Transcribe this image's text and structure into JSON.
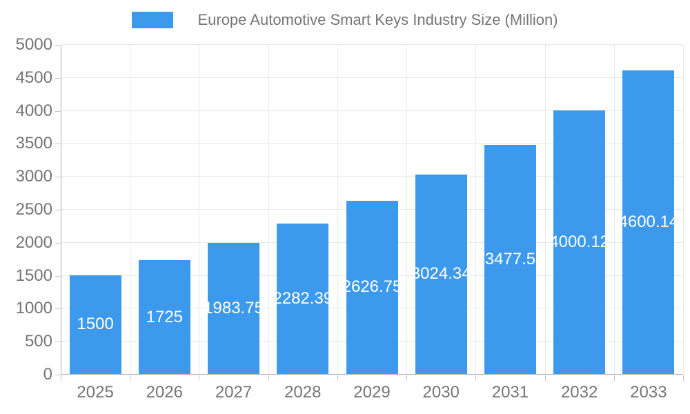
{
  "legend": {
    "label": "Europe Automotive Smart Keys Industry Size (Million)"
  },
  "chart_data": {
    "type": "bar",
    "title": "Europe Automotive Smart Keys Industry Size (Million)",
    "categories": [
      "2025",
      "2026",
      "2027",
      "2028",
      "2029",
      "2030",
      "2031",
      "2032",
      "2033"
    ],
    "values": [
      1500,
      1725,
      1983.75,
      2282.39,
      2626.75,
      3024.34,
      3477.5,
      4000.12,
      4600.14
    ],
    "value_labels": [
      "1500",
      "1725",
      "1983.75",
      "2282.39",
      "2626.75",
      "3024.34",
      "3477.5",
      "4000.12",
      "4600.14"
    ],
    "xlabel": "",
    "ylabel": "",
    "ylim": [
      0,
      5000
    ],
    "ytick_interval": 500,
    "y_tick_labels": [
      "0",
      "500",
      "1000",
      "1500",
      "2000",
      "2500",
      "3000",
      "3500",
      "4000",
      "4500",
      "5000"
    ],
    "grid": true,
    "legend_position": "top",
    "colors": {
      "bar": "#3c99ec",
      "bar_label_text": "#ffffff",
      "grid_line": "#e8e8e8",
      "axis_line": "#b0b0b0",
      "tick_mark": "#c4c4c4",
      "axis_text": "#757575"
    }
  }
}
